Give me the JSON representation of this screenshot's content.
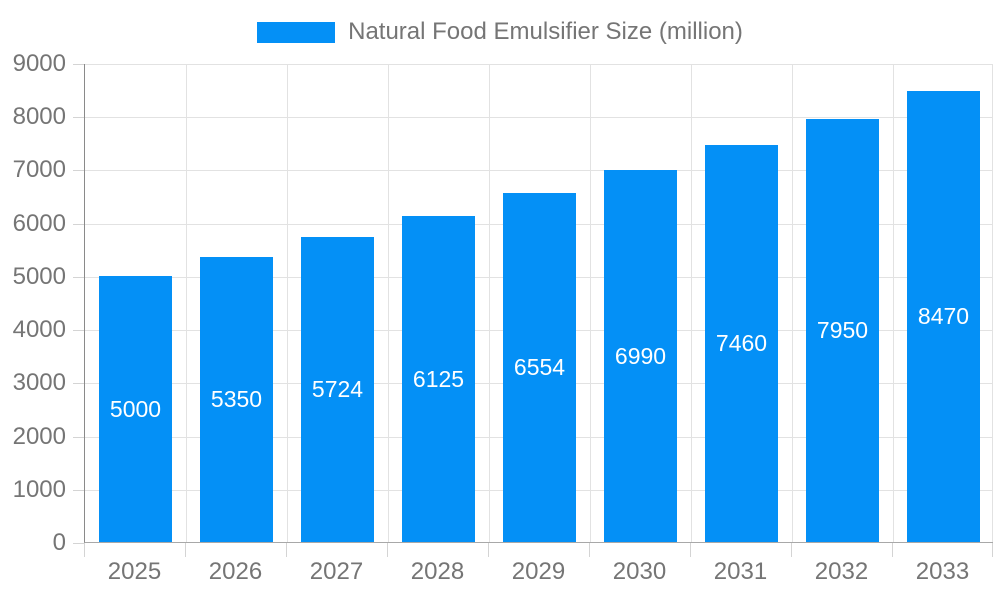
{
  "chart_data": {
    "type": "bar",
    "title": "Natural Food Emulsifier Size (million)",
    "categories": [
      "2025",
      "2026",
      "2027",
      "2028",
      "2029",
      "2030",
      "2031",
      "2032",
      "2033"
    ],
    "series": [
      {
        "name": "Natural Food Emulsifier Size (million)",
        "values": [
          5000,
          5350,
          5724,
          6125,
          6554,
          6990,
          7460,
          7950,
          8470
        ]
      }
    ],
    "data_labels": [
      "5000",
      "5350",
      "5724",
      "6125",
      "6554",
      "6990",
      "7460",
      "7950",
      "8470"
    ],
    "xlabel": "",
    "ylabel": "",
    "ylim": [
      0,
      9000
    ],
    "yticks": [
      0,
      1000,
      2000,
      3000,
      4000,
      5000,
      6000,
      7000,
      8000,
      9000
    ],
    "grid": true,
    "legend_position": "top-center"
  },
  "colors": {
    "bar": "#0490F6",
    "bar_label": "#FFFFFF",
    "grid": "#E2E2E2",
    "y_axis_line": "#8A8A8A",
    "x_axis_line": "#A8A8A8",
    "tick": "#D4D4D4",
    "text": "#757575",
    "background": "#FFFFFF"
  }
}
